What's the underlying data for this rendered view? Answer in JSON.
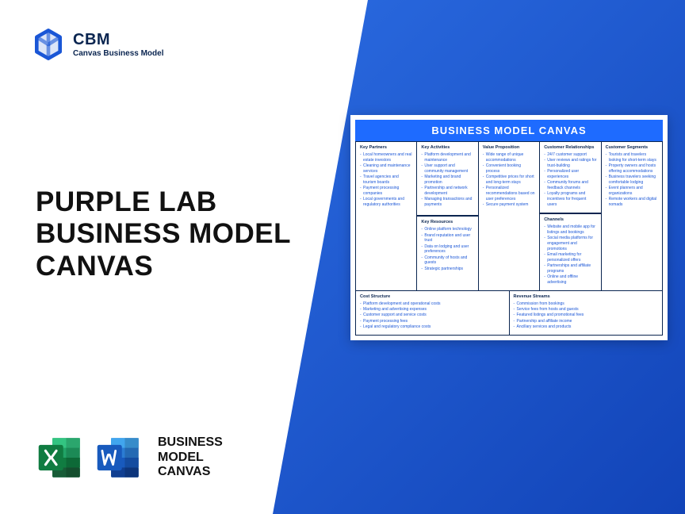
{
  "brand": {
    "title": "CBM",
    "subtitle": "Canvas Business Model",
    "logo_color": "#1a56d6"
  },
  "headline": {
    "line1": "PURPLE LAB",
    "line2": "BUSINESS MODEL",
    "line3": "CANVAS"
  },
  "apps": {
    "label_line1": "BUSINESS",
    "label_line2": "MODEL",
    "label_line3": "CANVAS",
    "excel_colors": {
      "dark": "#0f7a3e",
      "light": "#21a366"
    },
    "word_colors": {
      "dark": "#103f91",
      "light": "#2b7cd3"
    }
  },
  "canvas": {
    "title": "BUSINESS MODEL CANVAS",
    "title_bg": "#1e6bff",
    "border_color": "#0a2550",
    "text_color": "#1a56d6",
    "sections": {
      "key_partners": {
        "heading": "Key Partners",
        "items": [
          "Local homeowners and real estate investors",
          "Cleaning and maintenance services",
          "Travel agencies and tourism boards",
          "Payment processing companies",
          "Local governments and regulatory authorities"
        ]
      },
      "key_activities": {
        "heading": "Key Activities",
        "items": [
          "Platform development and maintenance",
          "User support and community management",
          "Marketing and brand promotion",
          "Partnership and network development",
          "Managing transactions and payments"
        ]
      },
      "key_resources": {
        "heading": "Key Resources",
        "items": [
          "Online platform technology",
          "Brand reputation and user trust",
          "Data on lodging and user preferences",
          "Community of hosts and guests",
          "Strategic partnerships"
        ]
      },
      "value_proposition": {
        "heading": "Value Proposition",
        "items": [
          "Wide range of unique accommodations",
          "Convenient booking process",
          "Competitive prices for short and long-term stays",
          "Personalized recommendations based on user preferences",
          "Secure payment system"
        ]
      },
      "customer_relationships": {
        "heading": "Customer Relationships",
        "items": [
          "24/7 customer support",
          "User reviews and ratings for trust-building",
          "Personalized user experiences",
          "Community forums and feedback channels",
          "Loyalty programs and incentives for frequent users"
        ]
      },
      "channels": {
        "heading": "Channels",
        "items": [
          "Website and mobile app for listings and bookings",
          "Social media platforms for engagement and promotions",
          "Email marketing for personalized offers",
          "Partnerships and affiliate programs",
          "Online and offline advertising"
        ]
      },
      "customer_segments": {
        "heading": "Customer Segments",
        "items": [
          "Tourists and travelers looking for short-term stays",
          "Property owners and hosts offering accommodations",
          "Business travelers seeking comfortable lodging",
          "Event planners and organizations",
          "Remote workers and digital nomads"
        ]
      },
      "cost_structure": {
        "heading": "Cost Structure",
        "items": [
          "Platform development and operational costs",
          "Marketing and advertising expenses",
          "Customer support and service costs",
          "Payment processing fees",
          "Legal and regulatory compliance costs"
        ]
      },
      "revenue_streams": {
        "heading": "Revenue Streams",
        "items": [
          "Commission from bookings",
          "Service fees from hosts and guests",
          "Featured listings and promotional fees",
          "Partnership and affiliate income",
          "Ancillary services and products"
        ]
      }
    }
  }
}
